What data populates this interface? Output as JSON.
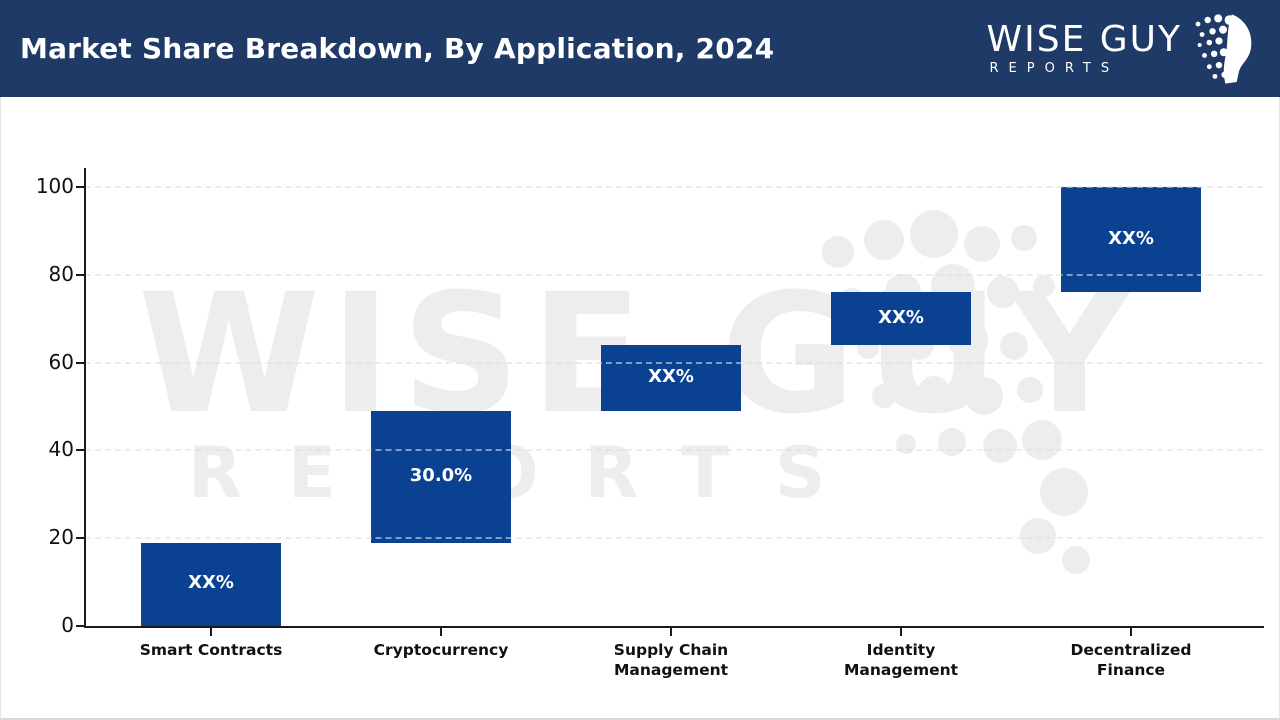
{
  "header": {
    "title": "Market Share Breakdown, By Application, 2024",
    "bg_color": "#1f3a67",
    "logo": {
      "name": "WISE GUY",
      "sub": "REPORTS"
    }
  },
  "watermark": {
    "line1": "WISE GUY",
    "line2": "REPORTS"
  },
  "chart_data": {
    "type": "bar",
    "subtype": "waterfall",
    "title": "Market Share Breakdown, By Application, 2024",
    "categories": [
      "Smart Contracts",
      "Cryptocurrency",
      "Supply Chain Management",
      "Identity Management",
      "Decentralized Finance"
    ],
    "tick_labels": [
      "Smart Contracts",
      "Cryptocurrency",
      "Supply Chain\nManagement",
      "Identity\nManagement",
      "Decentralized\nFinance"
    ],
    "segments": [
      {
        "category": "Smart Contracts",
        "start": 0,
        "end": 19,
        "value": 19,
        "label": "XX%"
      },
      {
        "category": "Cryptocurrency",
        "start": 19,
        "end": 49,
        "value": 30,
        "label": "30.0%"
      },
      {
        "category": "Supply Chain Management",
        "start": 49,
        "end": 64,
        "value": 15,
        "label": "XX%"
      },
      {
        "category": "Identity Management",
        "start": 64,
        "end": 76,
        "value": 12,
        "label": "XX%"
      },
      {
        "category": "Decentralized Finance",
        "start": 76,
        "end": 100,
        "value": 24,
        "label": "XX%"
      }
    ],
    "ylim": [
      0,
      100
    ],
    "yticks": [
      0,
      20,
      40,
      60,
      80,
      100
    ],
    "bar_color": "#0a4191",
    "grid": "dashed horizontal",
    "legend": null,
    "xlabel": "",
    "ylabel": ""
  }
}
